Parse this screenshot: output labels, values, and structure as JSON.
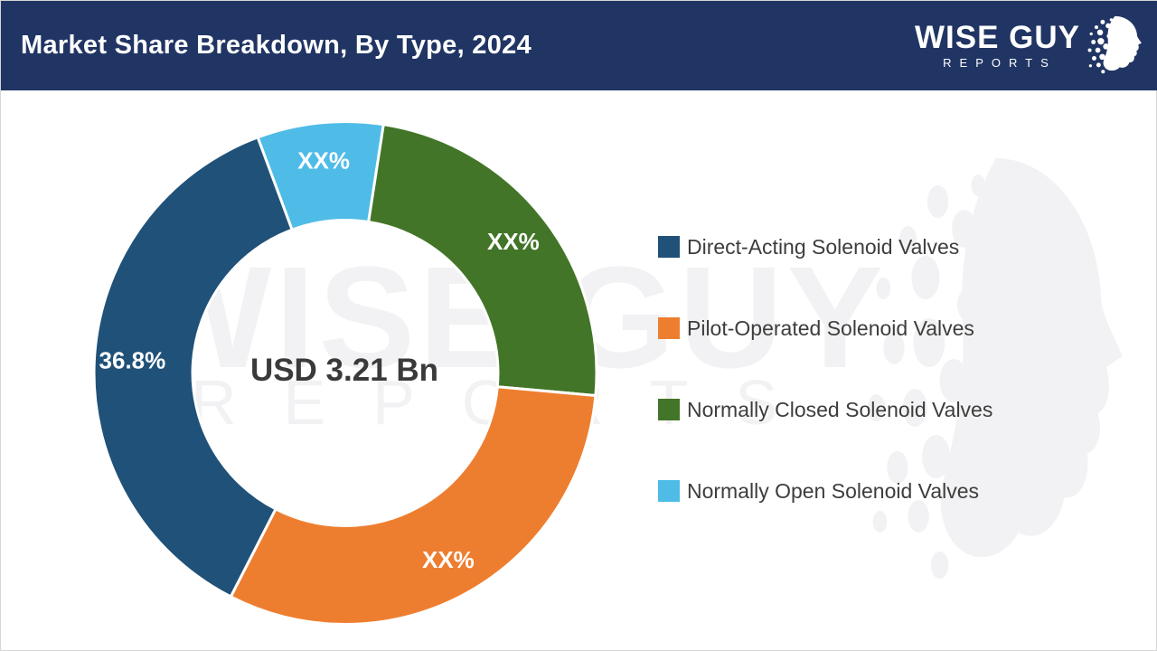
{
  "header": {
    "title": "Market Share Breakdown, By Type, 2024",
    "logo": {
      "name": "WISE GUY",
      "tagline": "REPORTS"
    }
  },
  "watermark": {
    "line1": "WISE GUY",
    "line2": "REPORTS"
  },
  "chart_data": {
    "type": "pie",
    "subtype": "donut",
    "title": "Market Share Breakdown, By Type, 2024",
    "center_label": "USD 3.21 Bn",
    "unit": "%",
    "start_angle_deg": -20.4,
    "direction": "clockwise",
    "draw_order": "reverse-of-legend",
    "inner_radius_ratio": 0.61,
    "legend_position": "right",
    "slices": [
      {
        "label": "Direct-Acting Solenoid Valves",
        "value": 36.8,
        "display_label": "36.8%",
        "color": "#205178"
      },
      {
        "label": "Pilot-Operated Solenoid Valves",
        "value": 31.1,
        "display_label": "XX%",
        "color": "#EE7E2F"
      },
      {
        "label": "Normally Closed Solenoid Valves",
        "value": 24.0,
        "display_label": "XX%",
        "color": "#427527"
      },
      {
        "label": "Normally Open Solenoid Valves",
        "value": 8.1,
        "display_label": "XX%",
        "color": "#4FBCE8"
      }
    ]
  }
}
